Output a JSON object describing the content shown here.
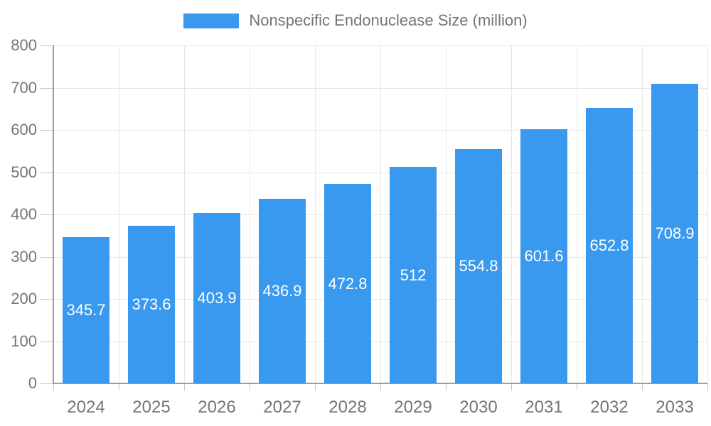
{
  "legend": {
    "label": "Nonspecific Endonuclease Size (million)"
  },
  "chart_data": {
    "type": "bar",
    "title": "Nonspecific Endonuclease Size (million)",
    "series_name": "Nonspecific Endonuclease Size (million)",
    "categories": [
      "2024",
      "2025",
      "2026",
      "2027",
      "2028",
      "2029",
      "2030",
      "2031",
      "2032",
      "2033"
    ],
    "values": [
      345.7,
      373.6,
      403.9,
      436.9,
      472.8,
      512,
      554.8,
      601.6,
      652.8,
      708.9
    ],
    "value_labels": [
      "345.7",
      "373.6",
      "403.9",
      "436.9",
      "472.8",
      "512",
      "554.8",
      "601.6",
      "652.8",
      "708.9"
    ],
    "xlabel": "",
    "ylabel": "",
    "ylim": [
      0,
      800
    ],
    "yticks": [
      0,
      100,
      200,
      300,
      400,
      500,
      600,
      700,
      800
    ],
    "grid": true,
    "legend_position": "top",
    "colors": {
      "bar": "#3999EE",
      "bar_label": "#FFFFFF",
      "tick_label": "#757575",
      "grid": "#E6E6E6",
      "axis": "#9E9E9E",
      "tick": "#C6C6C6",
      "background": "#FFFFFF"
    }
  }
}
